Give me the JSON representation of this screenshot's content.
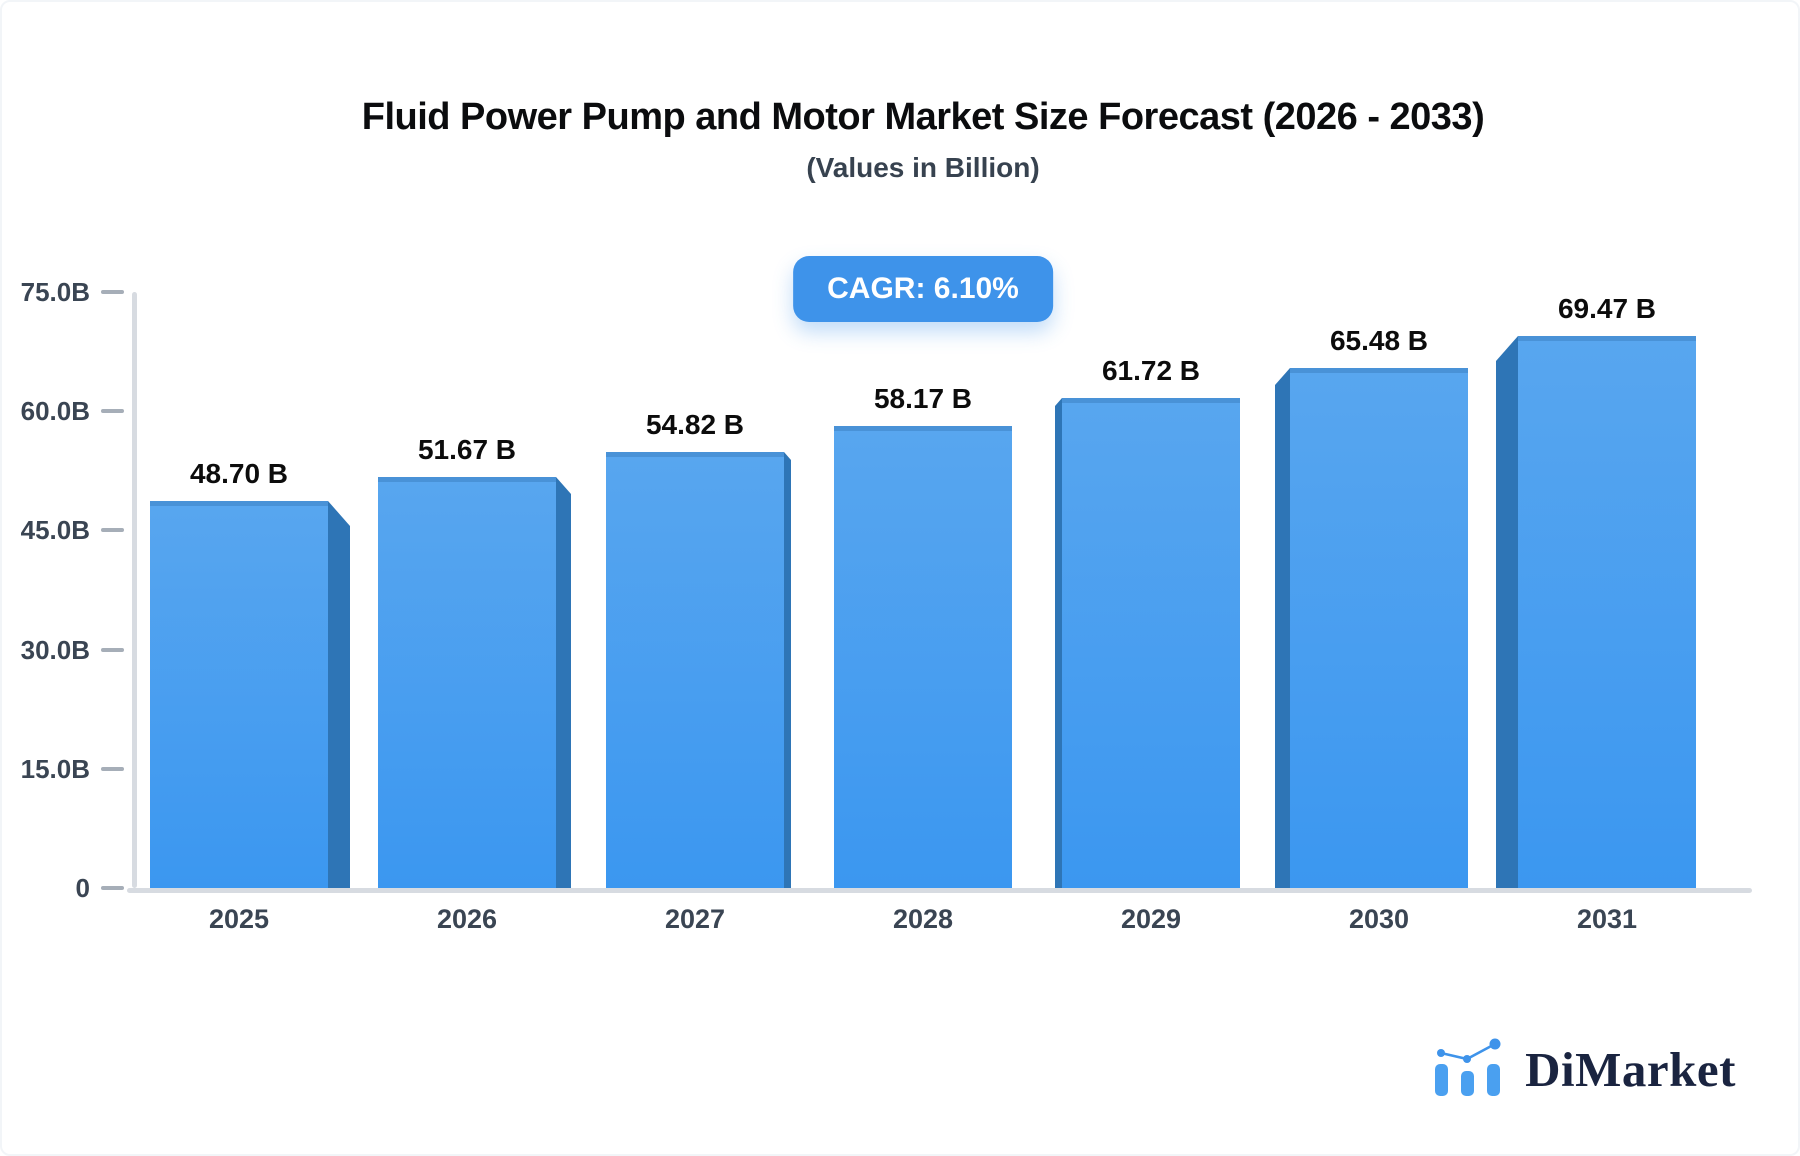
{
  "header": {
    "title": "Fluid Power Pump and Motor Market Size Forecast (2026 - 2033)",
    "subtitle": "(Values in Billion)"
  },
  "badge": {
    "label": "CAGR: 6.10%"
  },
  "footer": {
    "brand": "DiMarket"
  },
  "colors": {
    "bar_top": "#58a6ef",
    "bar_bottom": "#3b97f0",
    "bar_side": "#2e75b6",
    "axis_line": "#d7dbe1",
    "tick_mark": "#a6aeb8",
    "label_text": "#3a4553",
    "badge_bg": "#3e93ea",
    "badge_text": "#ffffff",
    "logo_blue": "#4aa0f0",
    "logo_navy": "#1a2440"
  },
  "chart_data": {
    "type": "bar",
    "title": "Fluid Power Pump and Motor Market Size Forecast (2026 - 2033)",
    "subtitle": "(Values in Billion)",
    "categories": [
      "2025",
      "2026",
      "2027",
      "2028",
      "2029",
      "2030",
      "2031"
    ],
    "values": [
      48.7,
      51.67,
      54.82,
      58.17,
      61.72,
      65.48,
      69.47
    ],
    "value_labels": [
      "48.70 B",
      "51.67 B",
      "54.82 B",
      "58.17 B",
      "61.72 B",
      "65.48 B",
      "69.47 B"
    ],
    "xlabel": "",
    "ylabel": "",
    "ylim": [
      0,
      75
    ],
    "yticks": [
      {
        "value": 75,
        "label": "75.0B"
      },
      {
        "value": 60,
        "label": "60.0B"
      },
      {
        "value": 45,
        "label": "45.0B"
      },
      {
        "value": 30,
        "label": "30.0B"
      },
      {
        "value": 15,
        "label": "15.0B"
      },
      {
        "value": 0,
        "label": "0"
      }
    ],
    "grid": false,
    "legend": false,
    "style": "3d-bevel-bars"
  }
}
